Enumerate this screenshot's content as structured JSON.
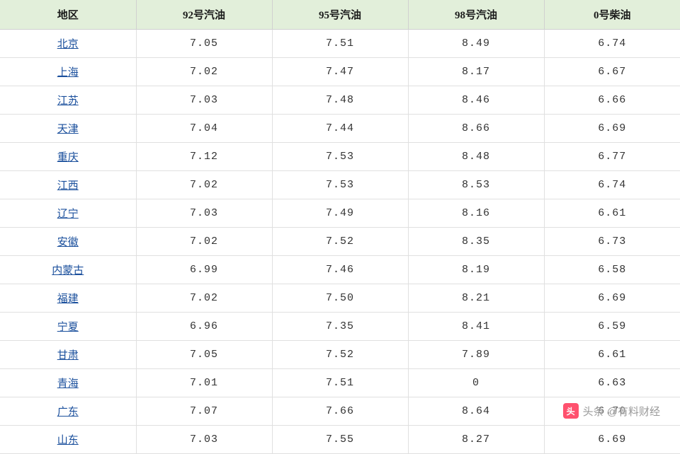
{
  "table": {
    "columns": [
      "地区",
      "92号汽油",
      "95号汽油",
      "98号汽油",
      "0号柴油"
    ],
    "header_bg": "#e2efda",
    "header_color": "#1a1a1a",
    "link_color": "#1a4f9c",
    "cell_color": "#333333",
    "border_color": "#e0e0e0",
    "rows": [
      {
        "region": "北京",
        "g92": "7.05",
        "g95": "7.51",
        "g98": "8.49",
        "d0": "6.74"
      },
      {
        "region": "上海",
        "g92": "7.02",
        "g95": "7.47",
        "g98": "8.17",
        "d0": "6.67"
      },
      {
        "region": "江苏",
        "g92": "7.03",
        "g95": "7.48",
        "g98": "8.46",
        "d0": "6.66"
      },
      {
        "region": "天津",
        "g92": "7.04",
        "g95": "7.44",
        "g98": "8.66",
        "d0": "6.69"
      },
      {
        "region": "重庆",
        "g92": "7.12",
        "g95": "7.53",
        "g98": "8.48",
        "d0": "6.77"
      },
      {
        "region": "江西",
        "g92": "7.02",
        "g95": "7.53",
        "g98": "8.53",
        "d0": "6.74"
      },
      {
        "region": "辽宁",
        "g92": "7.03",
        "g95": "7.49",
        "g98": "8.16",
        "d0": "6.61"
      },
      {
        "region": "安徽",
        "g92": "7.02",
        "g95": "7.52",
        "g98": "8.35",
        "d0": "6.73"
      },
      {
        "region": "内蒙古",
        "g92": "6.99",
        "g95": "7.46",
        "g98": "8.19",
        "d0": "6.58"
      },
      {
        "region": "福建",
        "g92": "7.02",
        "g95": "7.50",
        "g98": "8.21",
        "d0": "6.69"
      },
      {
        "region": "宁夏",
        "g92": "6.96",
        "g95": "7.35",
        "g98": "8.41",
        "d0": "6.59"
      },
      {
        "region": "甘肃",
        "g92": "7.05",
        "g95": "7.52",
        "g98": "7.89",
        "d0": "6.61"
      },
      {
        "region": "青海",
        "g92": "7.01",
        "g95": "7.51",
        "g98": "0",
        "d0": "6.63"
      },
      {
        "region": "广东",
        "g92": "7.07",
        "g95": "7.66",
        "g98": "8.64",
        "d0": "6.70"
      },
      {
        "region": "山东",
        "g92": "7.03",
        "g95": "7.55",
        "g98": "8.27",
        "d0": "6.69"
      }
    ]
  },
  "watermark": {
    "logo_text": "头",
    "text": "头条 @有料财经",
    "logo_bg": "#ff3355"
  }
}
